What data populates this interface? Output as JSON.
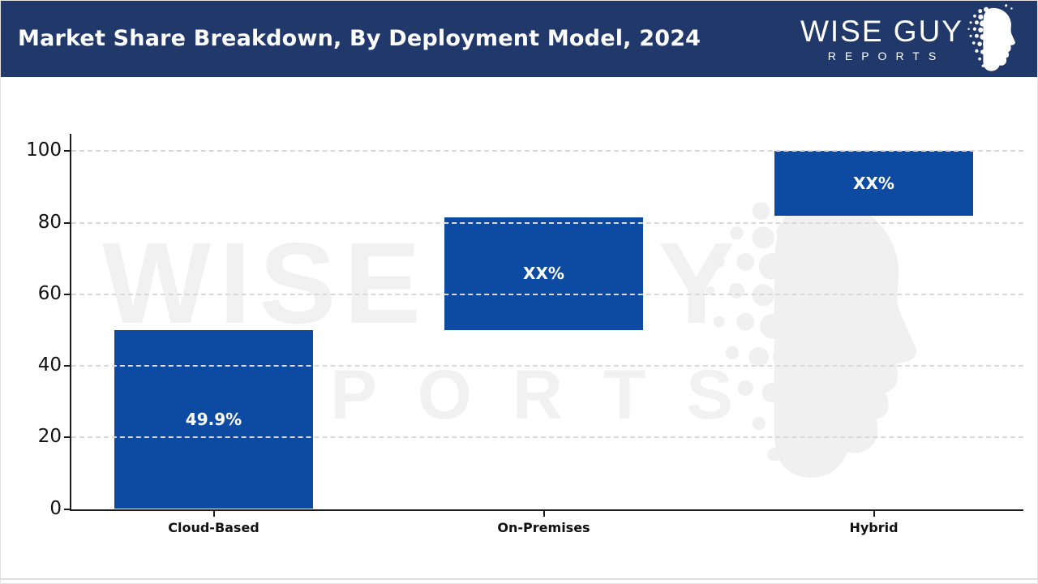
{
  "header": {
    "title": "Market Share Breakdown, By Deployment Model, 2024",
    "bg_color": "#21386b",
    "logo": {
      "line1": "WISE GUY",
      "line2": "REPORTS"
    }
  },
  "watermark": {
    "line1": "WISE GUY",
    "line2": "REPORTS"
  },
  "chart_data": {
    "type": "bar",
    "subtype": "waterfall-breakdown",
    "title": "Market Share Breakdown, By Deployment Model, 2024",
    "categories": [
      "Cloud-Based",
      "On-Premises",
      "Hybrid"
    ],
    "bars": [
      {
        "category": "Cloud-Based",
        "start": 0,
        "end": 49.9,
        "value": 49.9,
        "label": "49.9%",
        "value_masked": false
      },
      {
        "category": "On-Premises",
        "start": 50,
        "end": 81.5,
        "value": 31.5,
        "label": "XX%",
        "value_masked": true
      },
      {
        "category": "Hybrid",
        "start": 82,
        "end": 100,
        "value": 18,
        "label": "XX%",
        "value_masked": true
      }
    ],
    "xlabel": "",
    "ylabel": "",
    "ylim": [
      0,
      100
    ],
    "yticks": [
      0,
      20,
      40,
      60,
      80,
      100
    ],
    "grid": "horizontal-dashed",
    "legend": "none",
    "bar_color": "#0d4ba3",
    "bar_label_color": "#ffffff",
    "axis_color": "#1a1a1a",
    "grid_color": "#d9d9d9"
  }
}
